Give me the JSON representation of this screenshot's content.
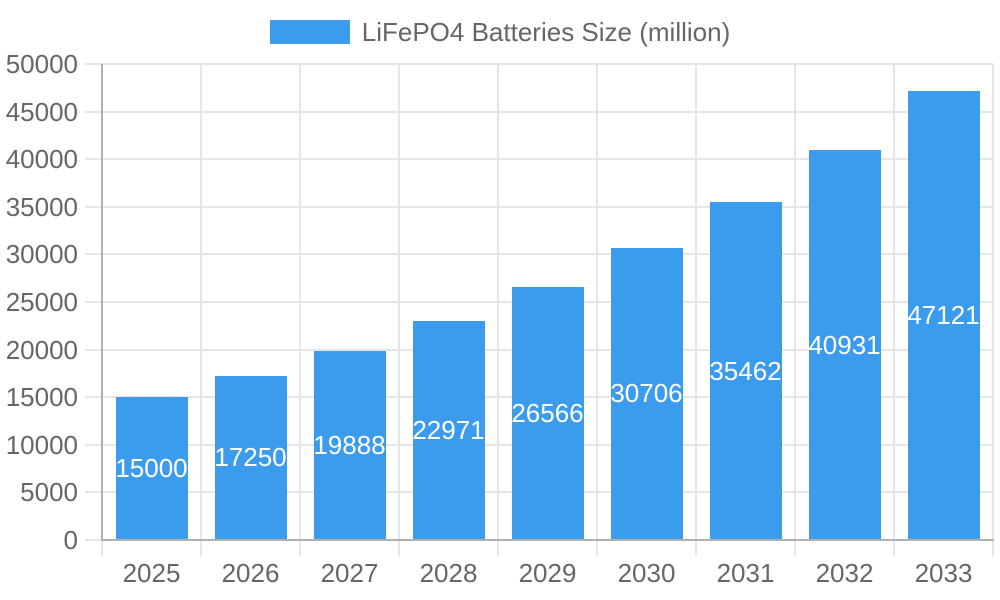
{
  "chart_data": {
    "type": "bar",
    "title": "LiFePO4 Batteries Size (million)",
    "categories": [
      "2025",
      "2026",
      "2027",
      "2028",
      "2029",
      "2030",
      "2031",
      "2032",
      "2033"
    ],
    "values": [
      15000,
      17250,
      19888,
      22971,
      26566,
      30706,
      35462,
      40931,
      47121
    ],
    "xlabel": "",
    "ylabel": "",
    "ylim": [
      0,
      50000
    ],
    "ytick_step": 5000,
    "ytick_labels": [
      "0",
      "5000",
      "10000",
      "15000",
      "20000",
      "25000",
      "30000",
      "35000",
      "40000",
      "45000",
      "50000"
    ],
    "grid": true,
    "legend_position": "top",
    "bar_label_position": "inside-center"
  },
  "colors": {
    "bar": "#3b9cee",
    "axis_text": "#666666",
    "grid_line": "#e6e6e6",
    "zero_line": "#b0b0b0",
    "bar_label_text": "#ffffff",
    "background": "#ffffff"
  }
}
